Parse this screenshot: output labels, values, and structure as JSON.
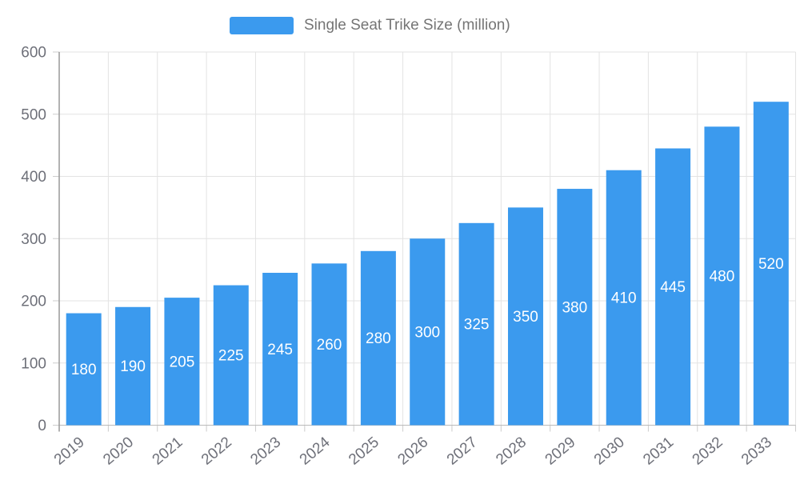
{
  "legend": {
    "label": "Single Seat Trike Size (million)"
  },
  "chart_data": {
    "type": "bar",
    "title": "",
    "legend_entries": [
      "Single Seat Trike Size (million)"
    ],
    "legend_position": "top",
    "categories": [
      "2019",
      "2020",
      "2021",
      "2022",
      "2023",
      "2024",
      "2025",
      "2026",
      "2027",
      "2028",
      "2029",
      "2030",
      "2031",
      "2032",
      "2033"
    ],
    "series": [
      {
        "name": "Single Seat Trike Size (million)",
        "values": [
          180,
          190,
          205,
          225,
          245,
          260,
          280,
          300,
          325,
          350,
          380,
          410,
          445,
          480,
          520
        ]
      }
    ],
    "data_labels_shown": true,
    "data_label_position": "inside-center",
    "xlabel": "",
    "ylabel": "",
    "ylim": [
      0,
      600
    ],
    "ytick_step": 100,
    "yticks": [
      0,
      100,
      200,
      300,
      400,
      500,
      600
    ],
    "grid": true,
    "x_label_rotation_deg": -40,
    "colors": {
      "bar": "#3B9AEE",
      "bar_value_label": "#FFFFFF",
      "grid_line": "#E3E3E3",
      "y_axis_line": "#999999",
      "x_axis_line": "#BBBBBB",
      "tick": "#CCCCCC",
      "axis_text": "#6E7079",
      "legend_text": "#757575"
    }
  }
}
